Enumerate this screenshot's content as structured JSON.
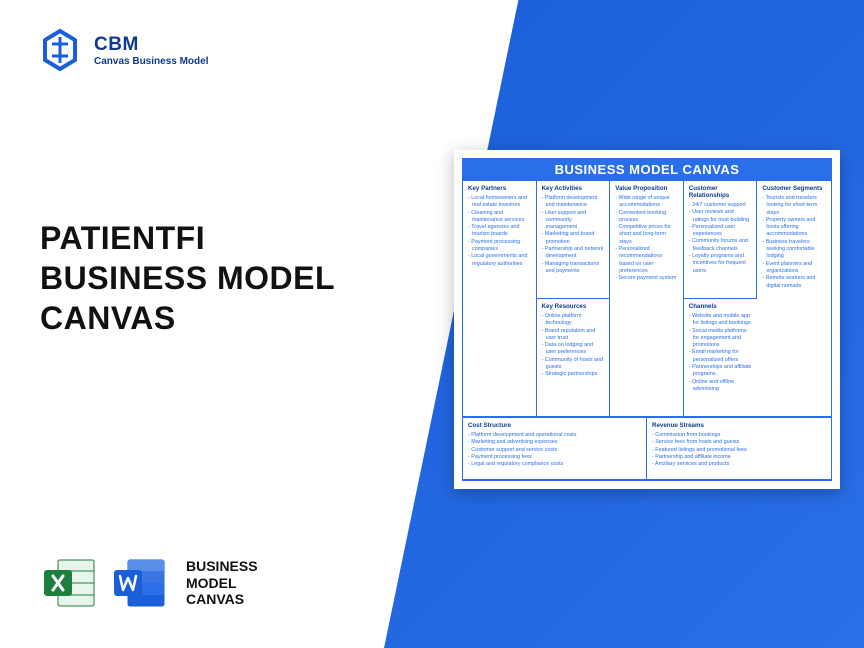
{
  "logo": {
    "title": "CBM",
    "sub": "Canvas Business Model"
  },
  "headline": {
    "l1": "PATIENTFI",
    "l2": "BUSINESS MODEL",
    "l3": "CANVAS"
  },
  "footer": {
    "l1": "BUSINESS",
    "l2": "MODEL",
    "l3": "CANVAS"
  },
  "canvas": {
    "title": "BUSINESS MODEL CANVAS",
    "colors": {
      "accent": "#2b6fe8",
      "text": "#0d3b8c"
    },
    "cells": {
      "key_partners": {
        "h": "Key Partners",
        "items": [
          "Local homeowners and real estate investors",
          "Cleaning and maintenance services",
          "Travel agencies and tourism boards",
          "Payment processing companies",
          "Local governments and regulatory authorities"
        ]
      },
      "key_activities": {
        "h": "Key Activities",
        "items": [
          "Platform development and maintenance",
          "User support and community management",
          "Marketing and brand promotion",
          "Partnership and network development",
          "Managing transactions and payments"
        ]
      },
      "value_proposition": {
        "h": "Value Proposition",
        "items": [
          "Wide range of unique accommodations",
          "Convenient booking process",
          "Competitive prices for short and long-term stays",
          "Personalized recommendations based on user preferences",
          "Secure payment system"
        ]
      },
      "customer_relationships": {
        "h": "Customer Relationships",
        "items": [
          "24/7 customer support",
          "User reviews and ratings for trust-building",
          "Personalized user experiences",
          "Community forums and feedback channels",
          "Loyalty programs and incentives for frequent users"
        ]
      },
      "customer_segments": {
        "h": "Customer Segments",
        "items": [
          "Tourists and travelers looking for short-term stays",
          "Property owners and hosts offering accommodations",
          "Business travelers seeking comfortable lodging",
          "Event planners and organizations",
          "Remote workers and digital nomads"
        ]
      },
      "key_resources": {
        "h": "Key Resources",
        "items": [
          "Online platform technology",
          "Brand reputation and user trust",
          "Data on lodging and user preferences",
          "Community of hosts and guests",
          "Strategic partnerships"
        ]
      },
      "channels": {
        "h": "Channels",
        "items": [
          "Website and mobile app for listings and bookings",
          "Social media platforms for engagement and promotions",
          "Email marketing for personalized offers",
          "Partnerships and affiliate programs",
          "Online and offline advertising"
        ]
      },
      "cost_structure": {
        "h": "Cost Structure",
        "items": [
          "Platform development and operational costs",
          "Marketing and advertising expenses",
          "Customer support and service costs",
          "Payment processing fees",
          "Legal and regulatory compliance costs"
        ]
      },
      "revenue_streams": {
        "h": "Revenue Streams",
        "items": [
          "Commission from bookings",
          "Service fees from hosts and guests",
          "Featured listings and promotional fees",
          "Partnership and affiliate income",
          "Ancillary services and products"
        ]
      }
    }
  }
}
